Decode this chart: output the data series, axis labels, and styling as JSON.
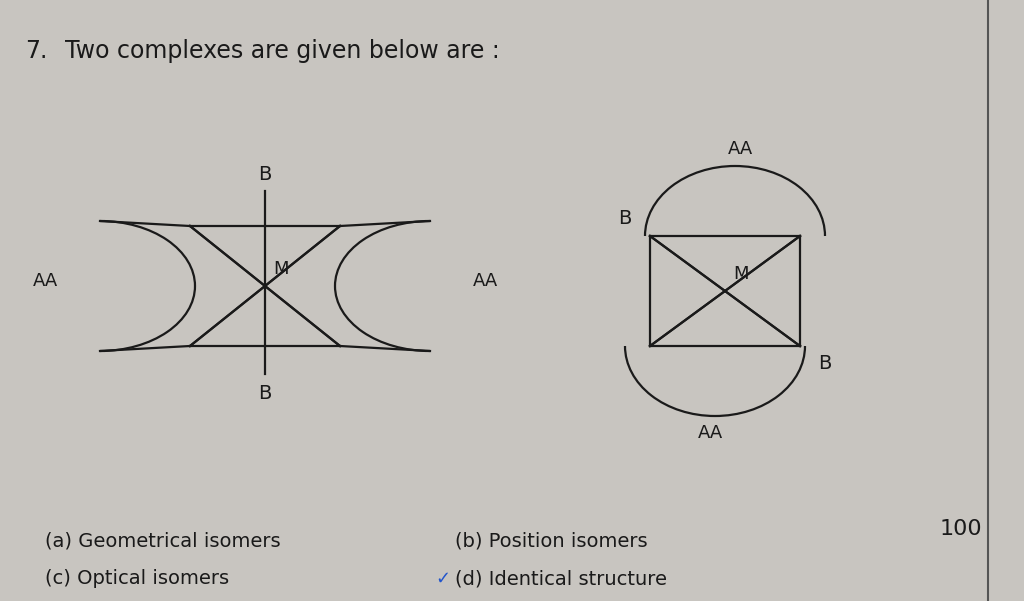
{
  "bg_color": "#c8c5c0",
  "paper_color": "#dedad5",
  "title": "Two complexes are given below are :",
  "title_fontsize": 17,
  "question_num": "7.",
  "options": [
    "(a) Geometrical isomers",
    "(b) Position isomers",
    "(c) Optical isomers",
    "(d) Identical structure"
  ],
  "answer_mark": "100",
  "line_color": "#1a1a1a",
  "text_color": "#1a1a1a",
  "lw": 1.6
}
